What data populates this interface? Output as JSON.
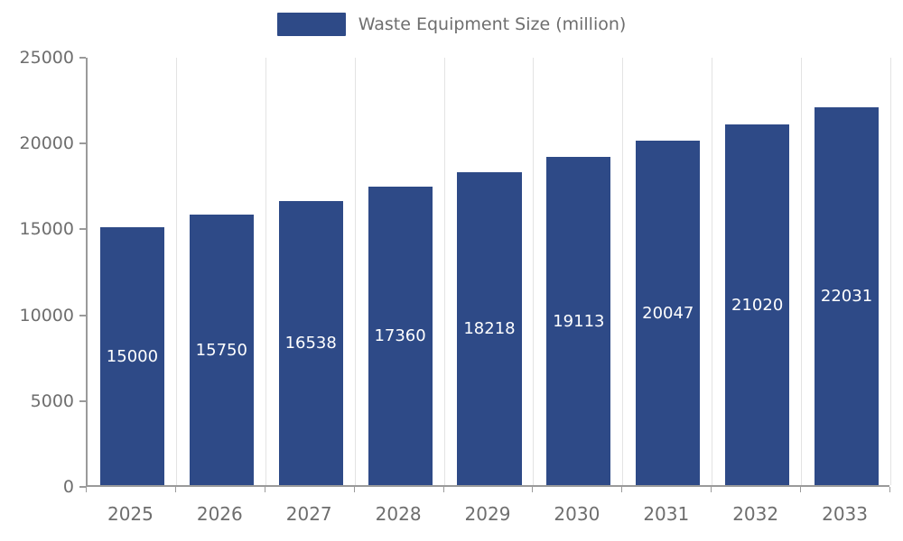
{
  "chart_data": {
    "type": "bar",
    "title": "Waste Equipment Size (million)",
    "categories": [
      "2025",
      "2026",
      "2027",
      "2028",
      "2029",
      "2030",
      "2031",
      "2032",
      "2033"
    ],
    "values": [
      15000,
      15750,
      16538,
      17360,
      18218,
      19113,
      20047,
      21020,
      22031
    ],
    "series": [
      {
        "name": "Waste Equipment Size (million)",
        "values": [
          15000,
          15750,
          16538,
          17360,
          18218,
          19113,
          20047,
          21020,
          22031
        ]
      }
    ],
    "xlabel": "",
    "ylabel": "",
    "ylim": [
      0,
      25000
    ],
    "yticks": [
      0,
      5000,
      10000,
      15000,
      20000,
      25000
    ],
    "grid": "vertical-only",
    "legend_position": "top-center",
    "value_labels": "inside-center-white",
    "colors": {
      "bar": "#2e4a87",
      "axis_line": "#9a9a9a",
      "grid_line": "#e3e3e3",
      "tick_text": "#6e6e6e",
      "legend_text": "#6e6e6e",
      "value_label_text": "#ffffff",
      "background": "#ffffff"
    }
  }
}
